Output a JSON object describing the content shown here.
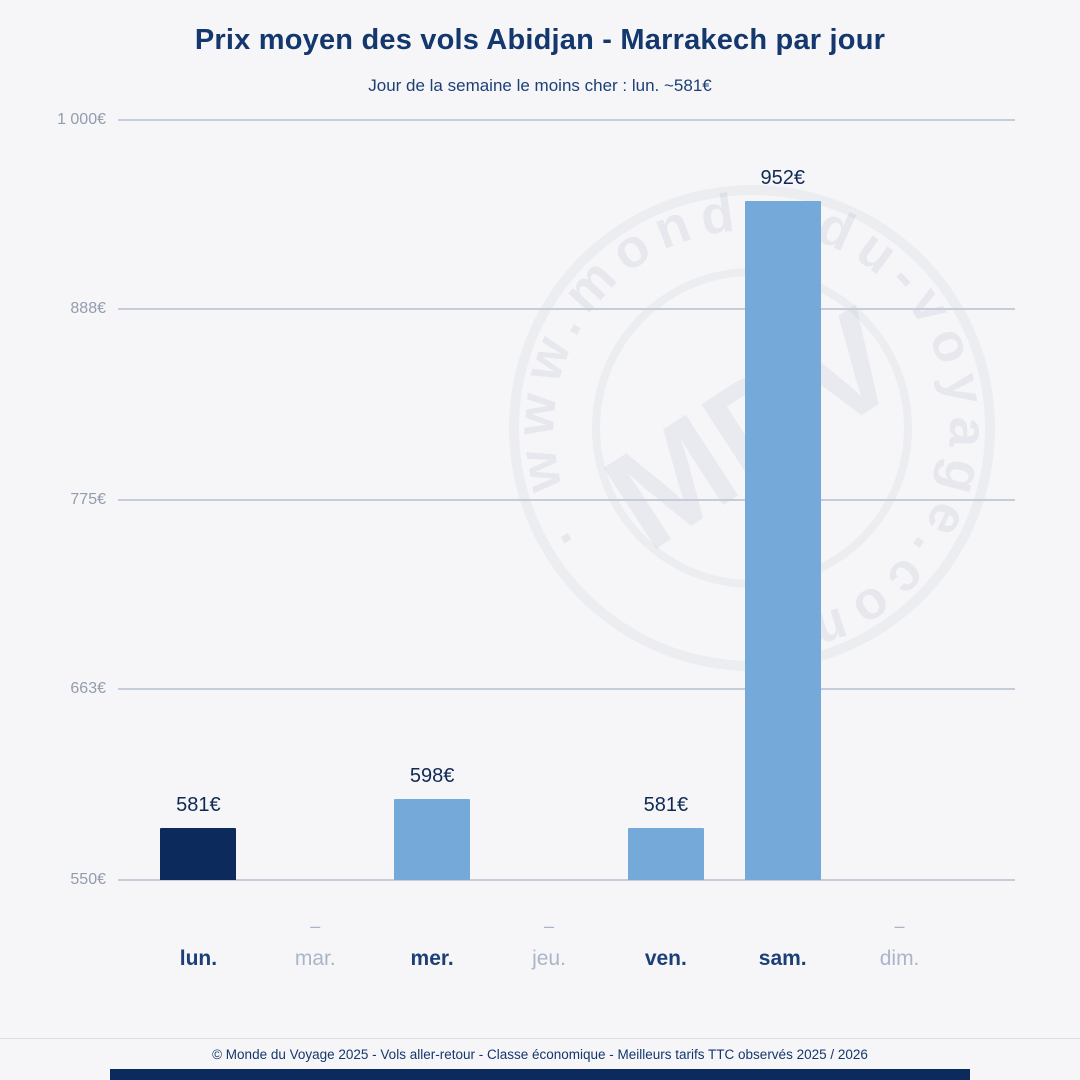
{
  "page": {
    "background": "#f6f6f8"
  },
  "chart_data": {
    "type": "bar",
    "title": "Prix moyen des vols Abidjan - Marrakech par jour",
    "subtitle": "Jour de la semaine le moins cher : lun. ~581€",
    "categories": [
      "lun.",
      "mar.",
      "mer.",
      "jeu.",
      "ven.",
      "sam.",
      "dim."
    ],
    "values": [
      581,
      null,
      598,
      null,
      581,
      952,
      null
    ],
    "value_labels": [
      "581€",
      null,
      "598€",
      null,
      "581€",
      "952€",
      null
    ],
    "missing_marker": "–",
    "ylim": [
      550,
      1000
    ],
    "yticks": [
      {
        "value": 1000,
        "label": "1 000€"
      },
      {
        "value": 888,
        "label": "888€"
      },
      {
        "value": 775,
        "label": "775€"
      },
      {
        "value": 663,
        "label": "663€"
      },
      {
        "value": 550,
        "label": "550€"
      }
    ],
    "grid": true,
    "legend": false,
    "highlight_index": 0,
    "colors": {
      "bar": "#74a9da",
      "bar_highlight": "#0d2a5c",
      "grid_line": "#c5cdda",
      "tick_label": "#939cae",
      "day_active": "#1c3f77",
      "day_inactive": "#a9b6c9",
      "value_label": "#0e2a55"
    }
  },
  "watermark": {
    "ring_text": "· www.monde-du-voyage.com ·",
    "center_text": "MDV"
  },
  "footer": {
    "text": "© Monde du Voyage 2025 - Vols aller-retour - Classe économique - Meilleurs tarifs TTC observés 2025 / 2026"
  }
}
